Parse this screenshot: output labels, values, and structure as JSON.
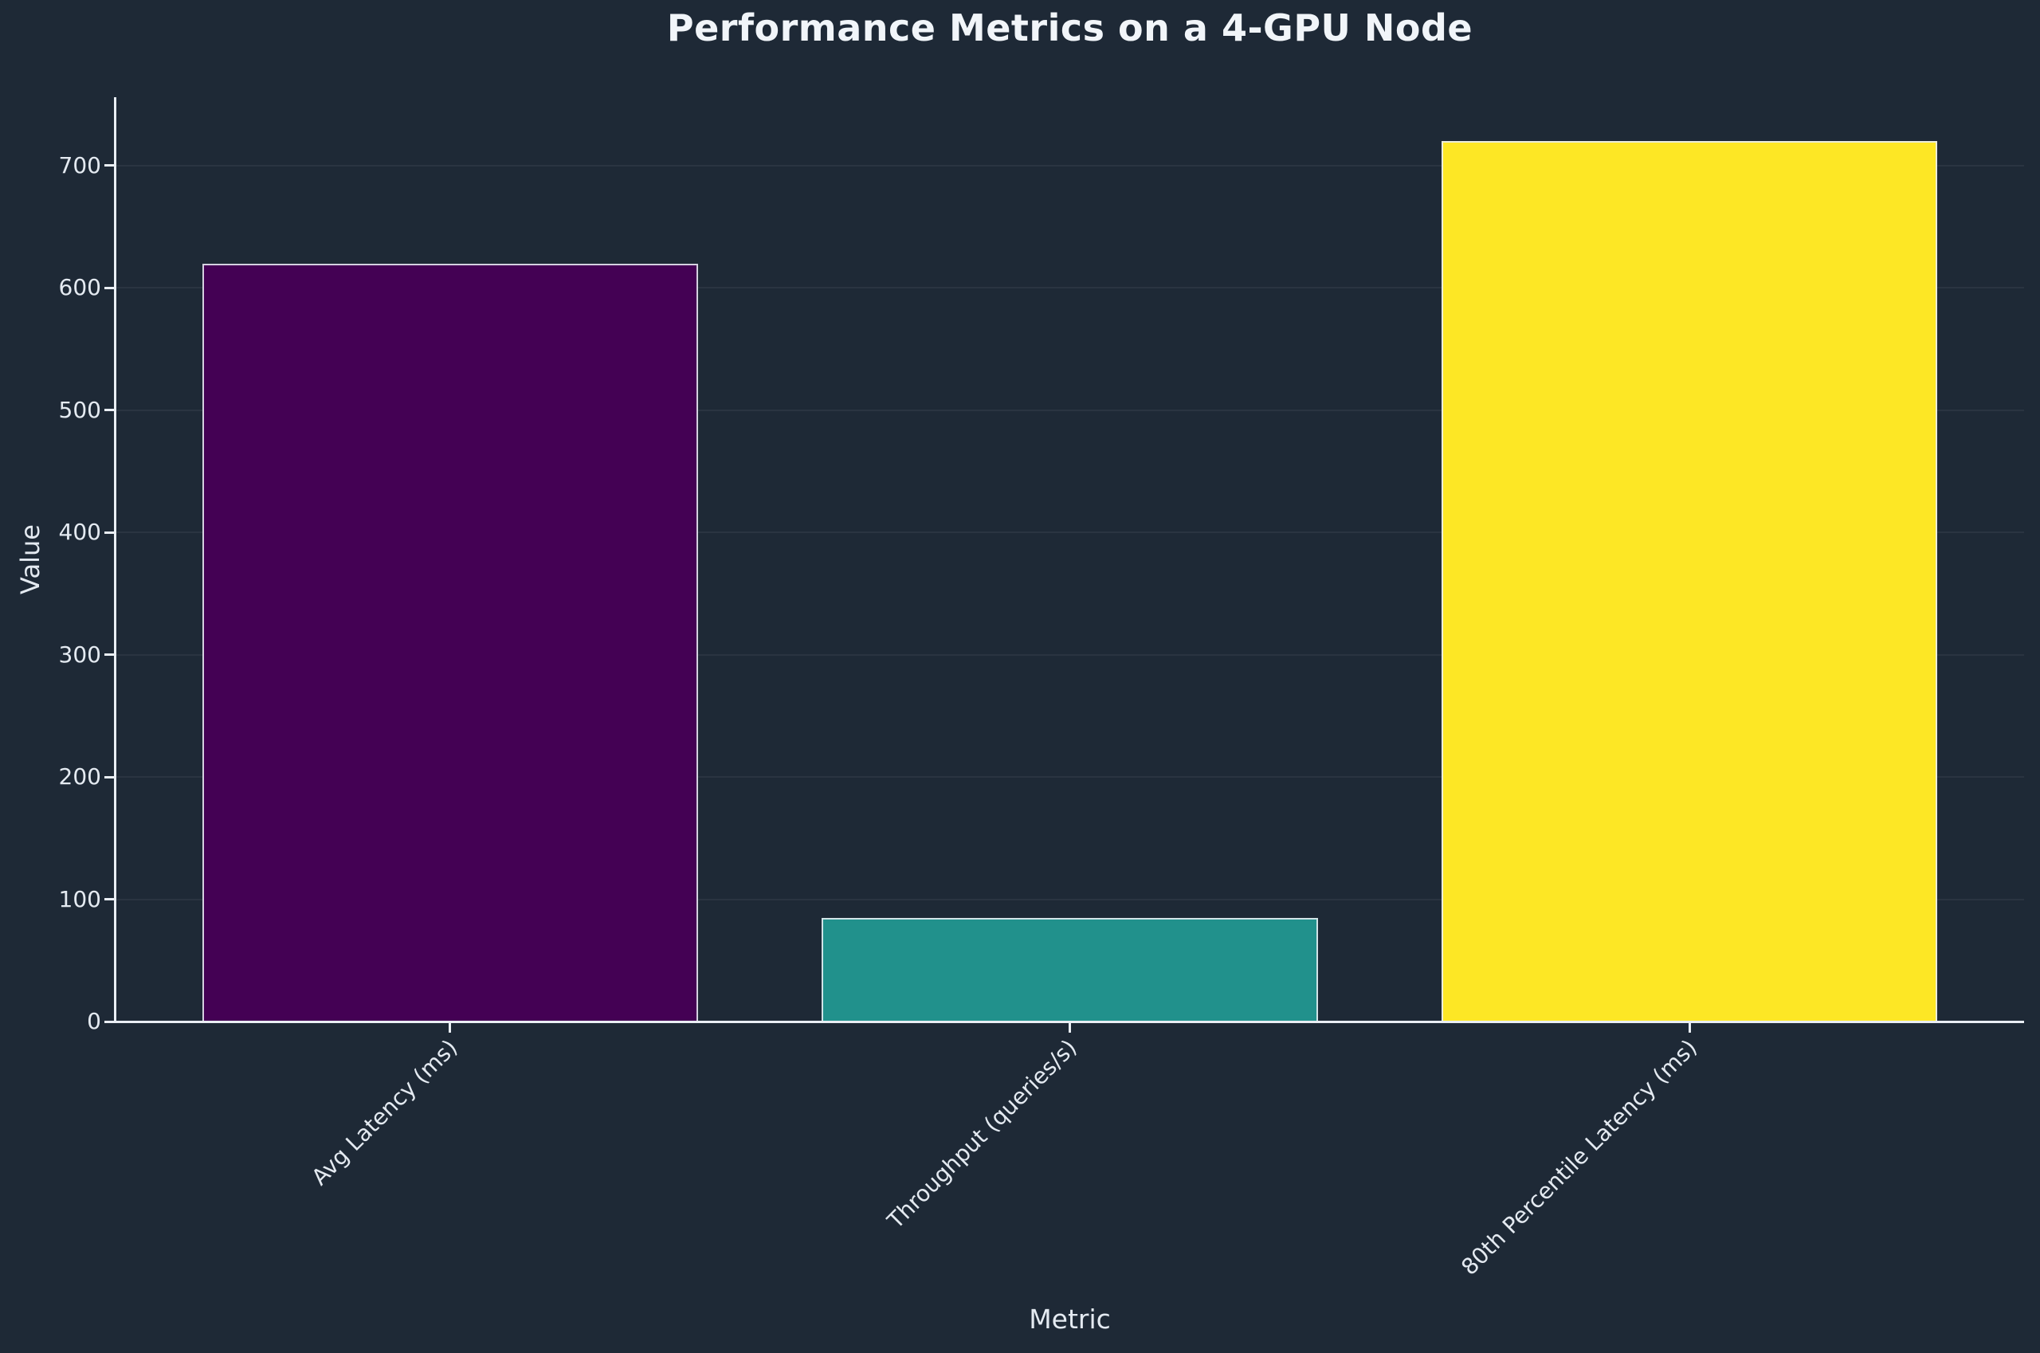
{
  "chart_data": {
    "type": "bar",
    "title": "Performance Metrics on a 4-GPU Node",
    "xlabel": "Metric",
    "ylabel": "Value",
    "categories": [
      "Avg Latency (ms)",
      "Throughput (queries/s)",
      "80th Percentile Latency (ms)"
    ],
    "values": [
      620,
      85,
      720
    ],
    "bar_colors": [
      "#440154",
      "#21918c",
      "#fde725"
    ],
    "ylim": [
      0,
      756
    ],
    "yticks": [
      0,
      100,
      200,
      300,
      400,
      500,
      600,
      700
    ],
    "grid": "horizontal-only",
    "legend": "none",
    "colors": {
      "background": "#1e2936",
      "axis": "#e9eef4",
      "text": "#e4eaf1",
      "title_text": "#f1f5f9",
      "gridline": "rgba(255,255,255,0.055)",
      "bar_edge": "rgba(233,238,244,0.88)"
    }
  }
}
